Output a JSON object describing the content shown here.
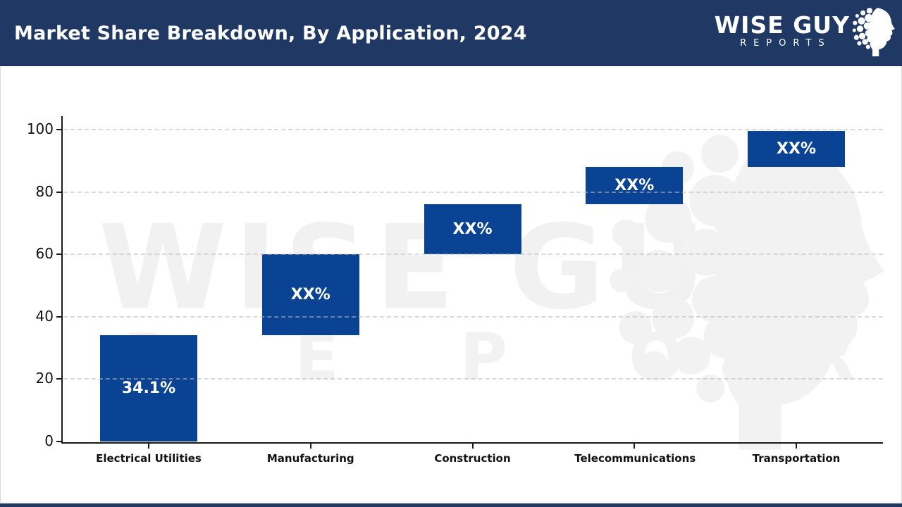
{
  "header": {
    "title": "Market Share Breakdown, By Application, 2024",
    "logo_line1": "WISE GUY",
    "logo_line2": "REPORTS",
    "bg_color": "#1f3864"
  },
  "watermark": {
    "line1": "WISE GUY",
    "line2": "R E P O R T S"
  },
  "chart_data": {
    "type": "bar",
    "subtype": "waterfall",
    "title": "Market Share Breakdown, By Application, 2024",
    "categories": [
      "Electrical Utilities",
      "Manufacturing",
      "Construction",
      "Telecommunications",
      "Transportation"
    ],
    "segments": [
      {
        "label": "34.1%",
        "start": 0,
        "end": 34.1
      },
      {
        "label": "XX%",
        "start": 34.1,
        "end": 60
      },
      {
        "label": "XX%",
        "start": 60,
        "end": 76
      },
      {
        "label": "XX%",
        "start": 76,
        "end": 88
      },
      {
        "label": "XX%",
        "start": 88,
        "end": 99.5
      }
    ],
    "yticks": [
      0,
      20,
      40,
      60,
      80,
      100
    ],
    "ylim": [
      0,
      105
    ],
    "bar_color": "#0a4294",
    "grid": true,
    "grid_style": "dashed",
    "legend": false,
    "xlabel": "",
    "ylabel": ""
  }
}
